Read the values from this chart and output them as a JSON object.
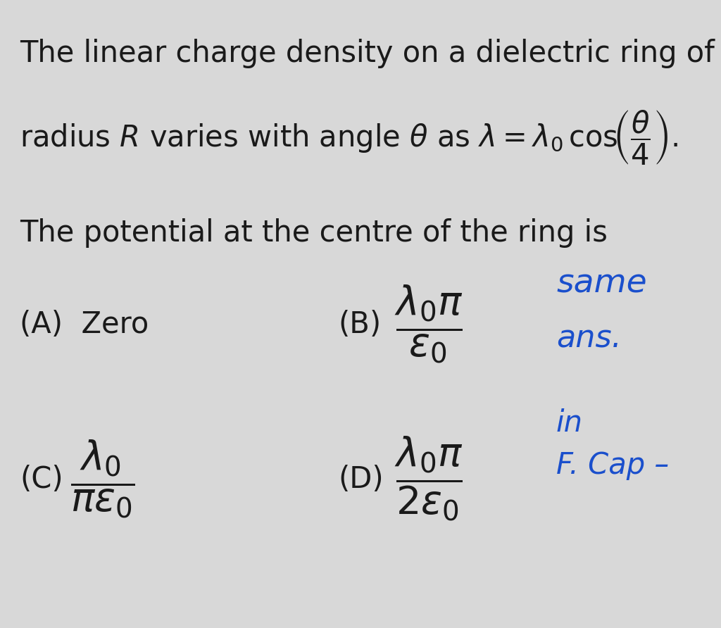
{
  "background_color": "#d8d8d8",
  "text_color": "#1a1a1a",
  "blue_color": "#1a4fcc",
  "fig_width": 10.24,
  "fig_height": 8.92,
  "line1": "The linear charge density on a dielectric ring of",
  "line3": "The potential at the centre of the ring is",
  "optionA_text": "(A)  Zero",
  "optionB_label": "(B)",
  "optionC_label": "(C)",
  "optionD_label": "(D)",
  "annotation_line1": "same",
  "annotation_line2": "ans.",
  "annotation_line3": "in",
  "annotation_line4": "F. Cap –"
}
